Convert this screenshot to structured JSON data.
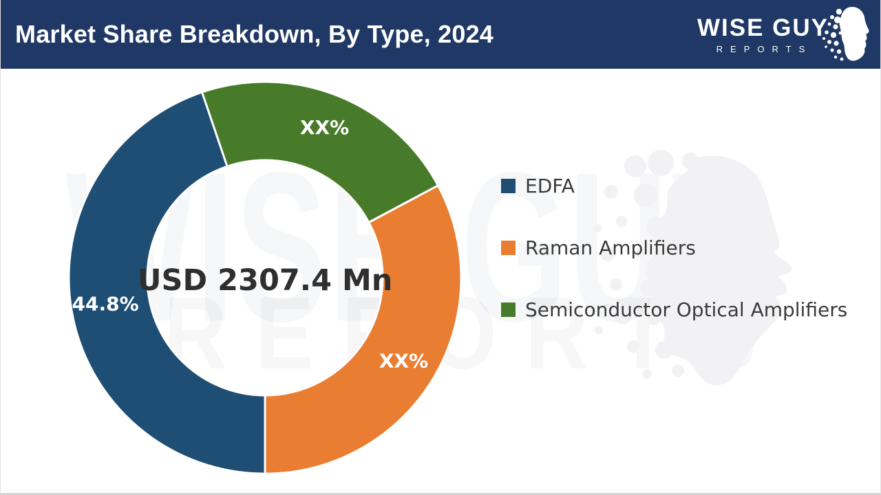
{
  "header": {
    "title": "Market Share Breakdown, By Type, 2024",
    "bg_color": "#203865",
    "logo": {
      "name": "WISE GUY",
      "tagline": "REPORTS"
    }
  },
  "watermark": {
    "line1": "WISE GUY",
    "line2": "REPORTS"
  },
  "chart_data": {
    "type": "pie",
    "subtype": "donut",
    "title": "Market Share Breakdown, By Type, 2024",
    "center_label": "USD 2307.4 Mn",
    "total_value": "USD 2307.4 Mn",
    "rotation_deg_from_top": 180,
    "direction": "clockwise",
    "inner_radius_ratio": 0.6,
    "legend_position": "right",
    "grid": false,
    "segments": [
      {
        "label": "EDFA",
        "display_value": "44.8%",
        "sweep_pct": 44.8,
        "color": "#1E4E74"
      },
      {
        "label": "Raman Amplifiers",
        "display_value": "XX%",
        "sweep_pct": 32.8,
        "color": "#E97E33"
      },
      {
        "label": "Semiconductor Optical Amplifiers",
        "display_value": "XX%",
        "sweep_pct": 22.4,
        "color": "#477A29"
      }
    ],
    "draw_order": [
      0,
      2,
      1
    ]
  },
  "colors": {
    "header_bg": "#203865",
    "border": "#d4d4d4",
    "legend_text": "#3a3a3a",
    "center_text": "#2f2f2f",
    "separator": "#ffffff"
  }
}
